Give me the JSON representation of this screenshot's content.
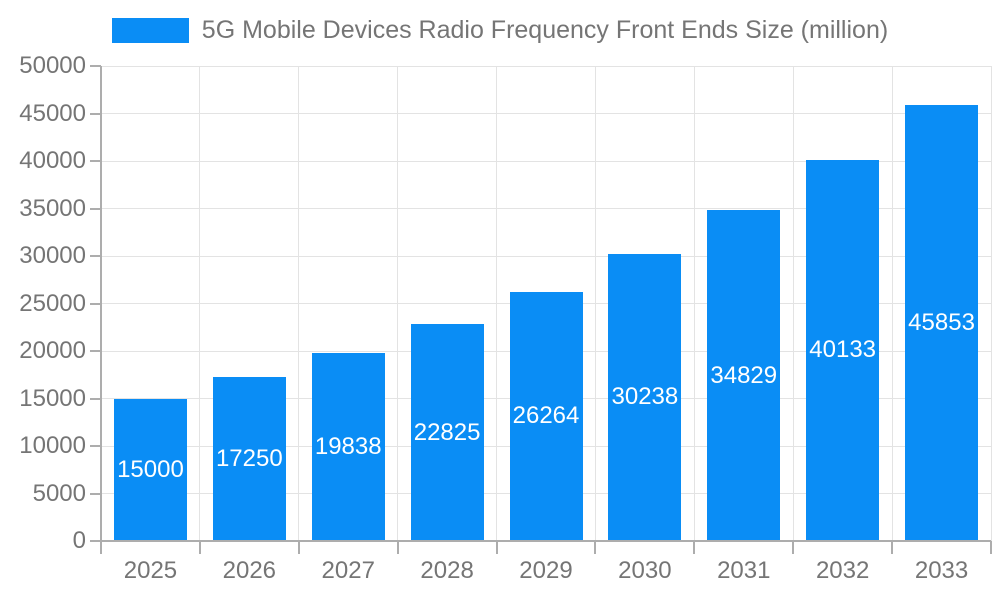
{
  "legend": {
    "label": "5G Mobile Devices Radio Frequency Front Ends Size (million)",
    "swatch_color": "#0a8df5"
  },
  "chart_data": {
    "type": "bar",
    "title": "5G Mobile Devices Radio Frequency Front Ends Size (million)",
    "categories": [
      "2025",
      "2026",
      "2027",
      "2028",
      "2029",
      "2030",
      "2031",
      "2032",
      "2033"
    ],
    "values": [
      15000,
      17250,
      19838,
      22825,
      26264,
      30238,
      34829,
      40133,
      45853
    ],
    "xlabel": "",
    "ylabel": "",
    "ylim": [
      0,
      50000
    ],
    "ytick_step": 5000,
    "yticks": [
      0,
      5000,
      10000,
      15000,
      20000,
      25000,
      30000,
      35000,
      40000,
      45000,
      50000
    ],
    "grid": true,
    "legend_position": "top-center",
    "bar_color": "#0a8df5",
    "value_label_color": "#ffffff",
    "axis_text_color": "#757575",
    "axis_line_color": "#adadad",
    "gridline_color": "#e3e3e3",
    "background_color": "#ffffff"
  }
}
